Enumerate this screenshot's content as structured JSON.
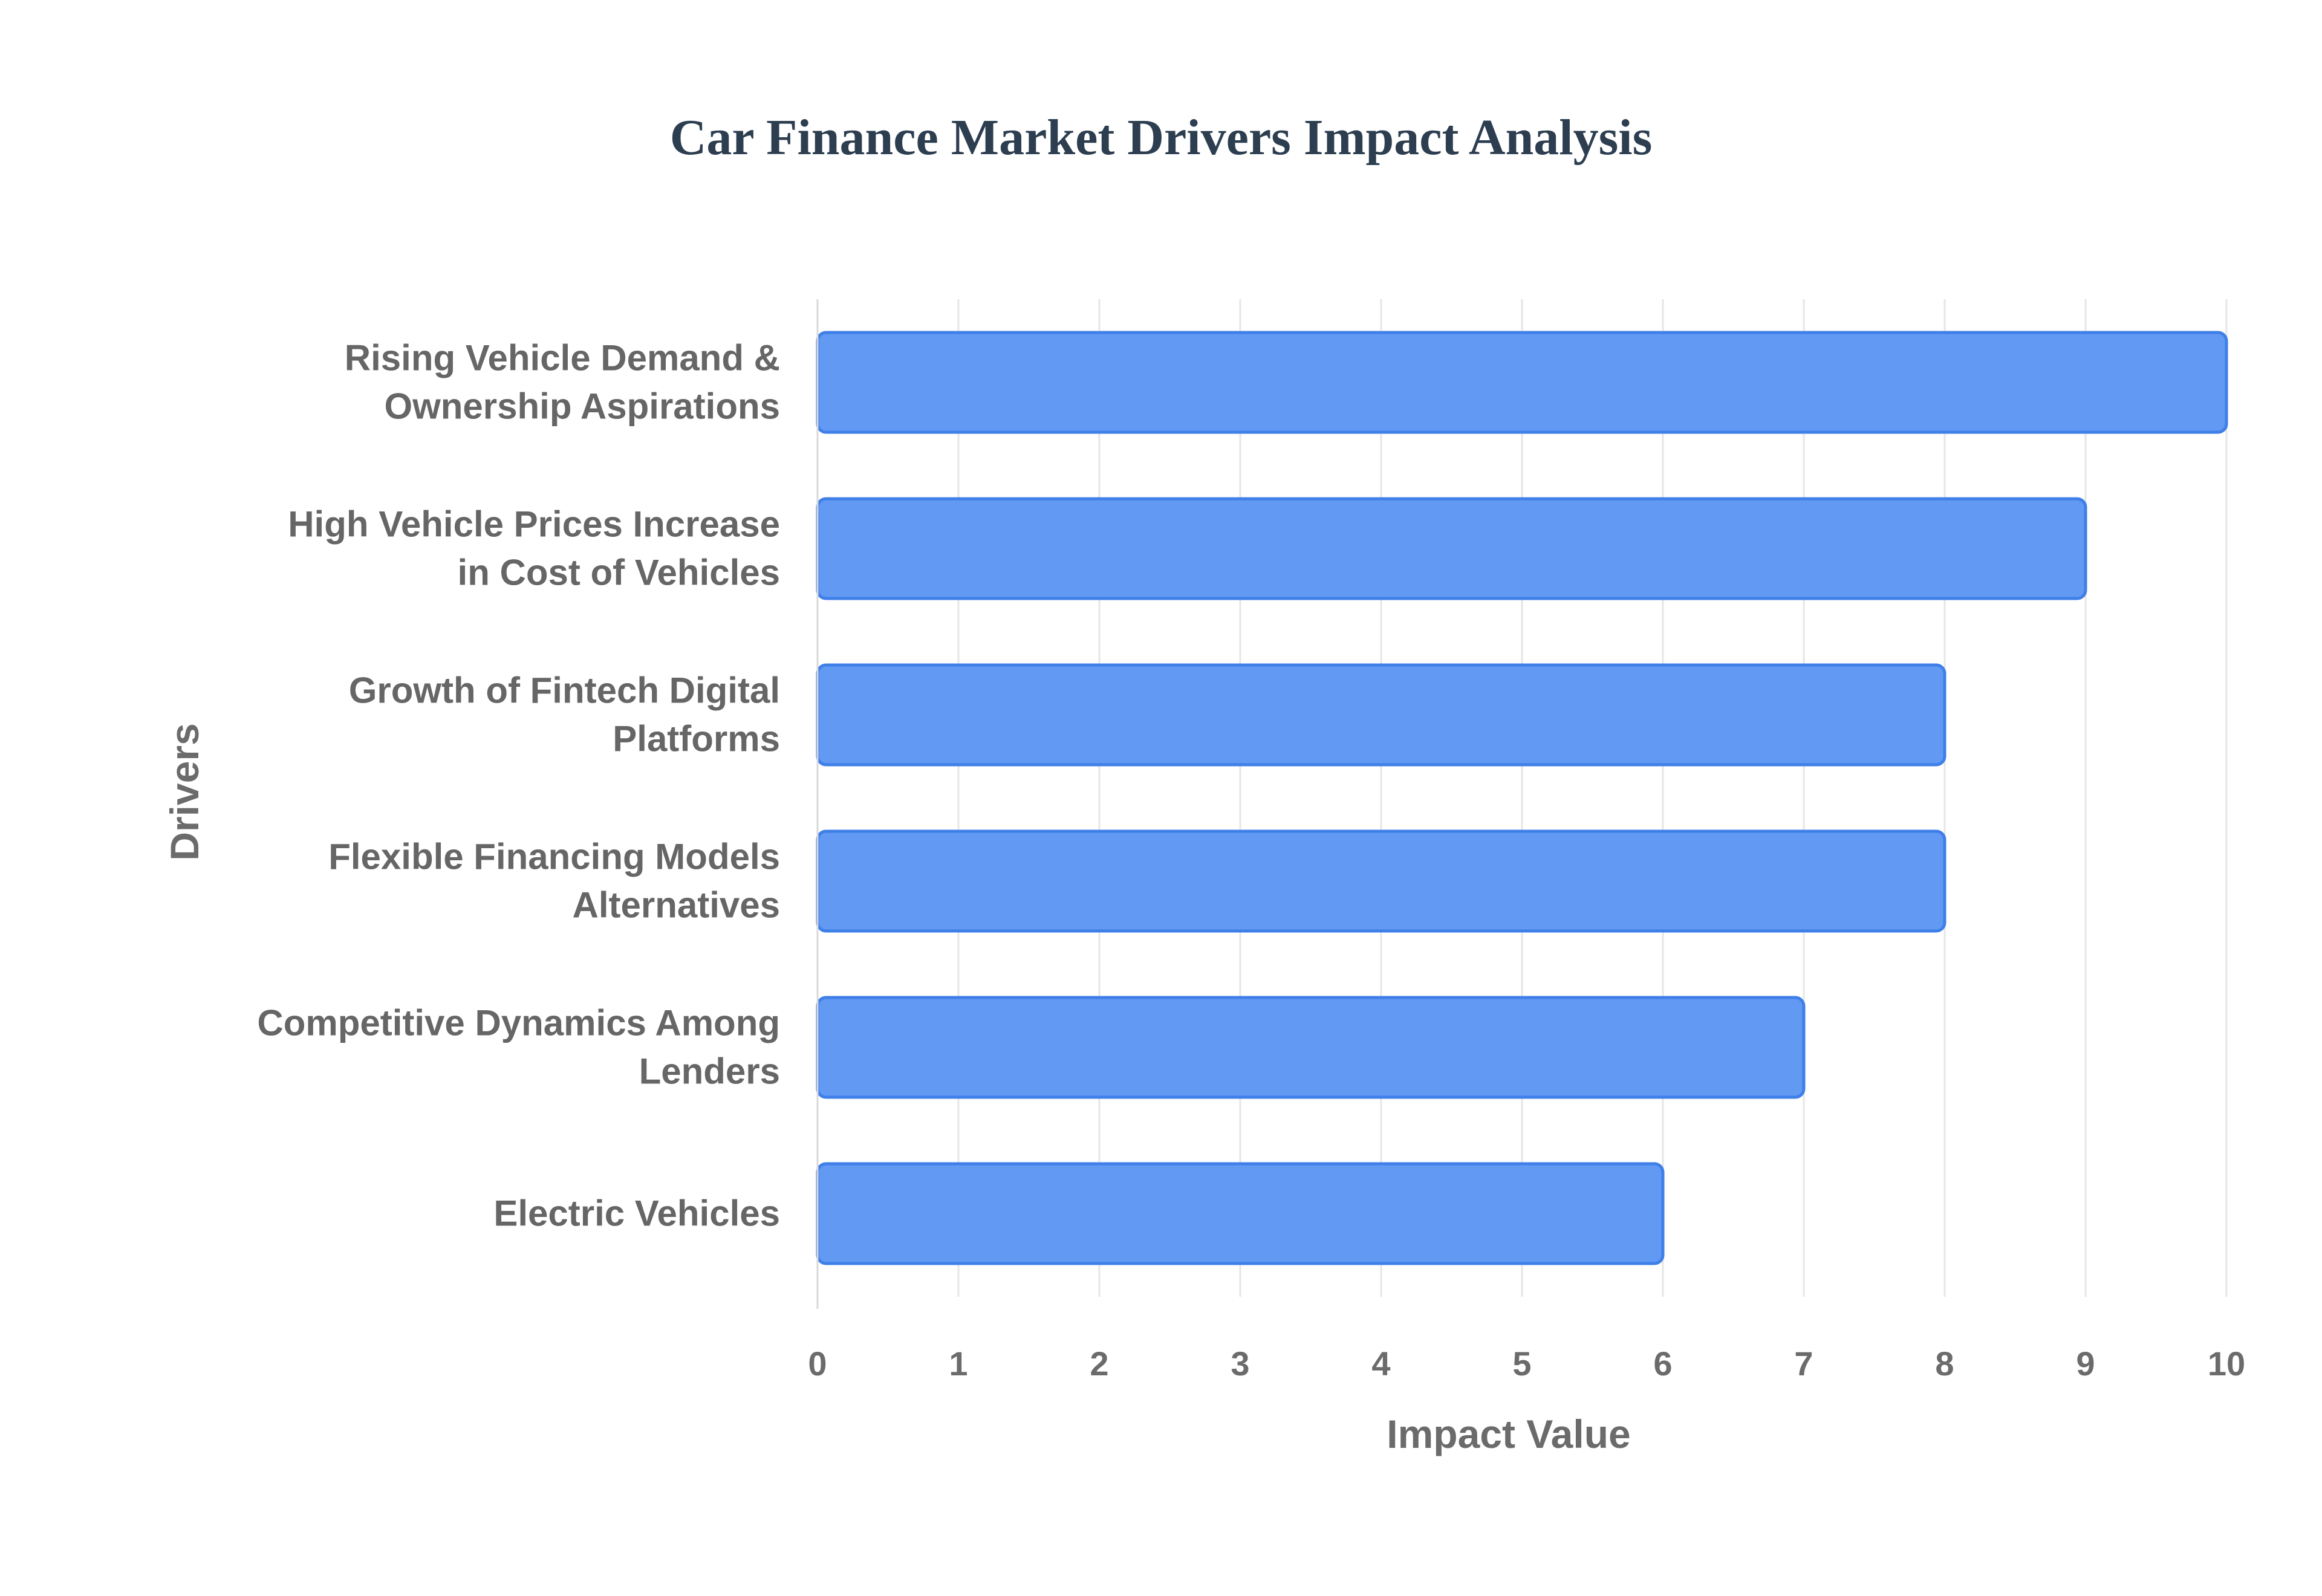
{
  "chart_data": {
    "type": "bar",
    "orientation": "horizontal",
    "title": "Car Finance Market Drivers Impact Analysis",
    "xlabel": "Impact Value",
    "ylabel": "Drivers",
    "categories": [
      [
        "Rising Vehicle Demand &",
        "Ownership Aspirations"
      ],
      [
        "High Vehicle Prices Increase",
        "in Cost of Vehicles"
      ],
      [
        "Growth of Fintech Digital",
        "Platforms"
      ],
      [
        "Flexible Financing Models",
        "Alternatives"
      ],
      [
        "Competitive Dynamics Among",
        "Lenders"
      ],
      [
        "Electric Vehicles"
      ]
    ],
    "values": [
      10,
      9,
      8,
      8,
      7,
      6
    ],
    "xlim": [
      0,
      10
    ],
    "xticks": [
      "0",
      "1",
      "2",
      "3",
      "4",
      "5",
      "6",
      "7",
      "8",
      "9",
      "10"
    ],
    "grid": true,
    "legend": "none",
    "colors": {
      "bar_fill": "#6199f3",
      "bar_border": "#3f7fe8",
      "title": "#2c3e50",
      "text": "#6b6b6b",
      "grid": "#e6e6e6"
    }
  }
}
